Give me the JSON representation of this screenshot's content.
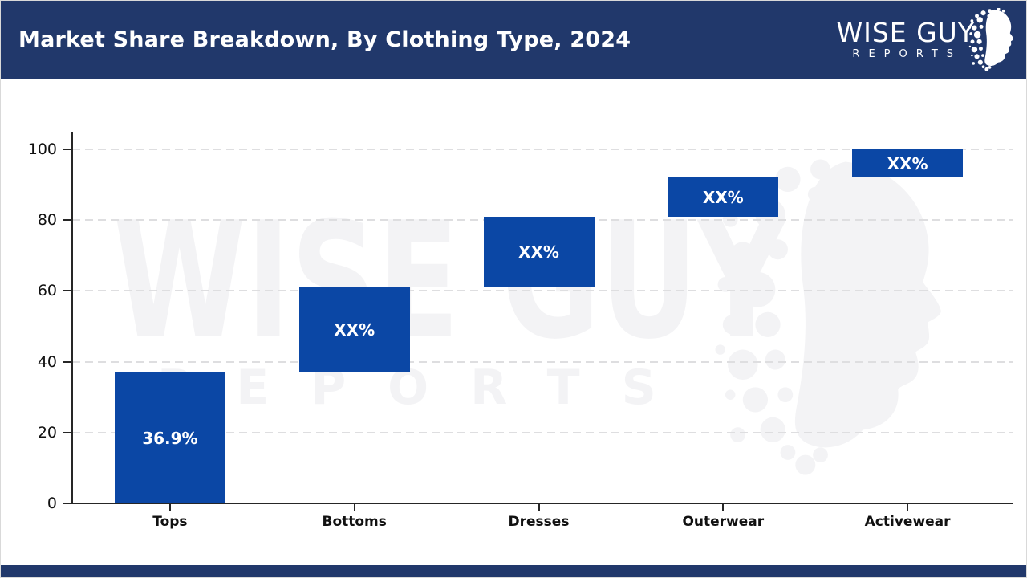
{
  "header": {
    "title": "Market Share Breakdown, By Clothing Type, 2024",
    "logo": {
      "line1": "WISE GUY",
      "line2": "REPORTS"
    }
  },
  "watermark": {
    "line1": "WISE GUY",
    "line2": "REPORTS"
  },
  "colors": {
    "header_bg": "#21386b",
    "footer_bg": "#21386b",
    "bar": "#0b47a5",
    "bar_label": "#ffffff",
    "axis": "#262626",
    "grid": "#dedee0",
    "tick_label": "#111111",
    "title": "#ffffff",
    "watermark": "#f3f3f5"
  },
  "chart_data": {
    "type": "bar",
    "variant": "waterfall",
    "title": "Market Share Breakdown, By Clothing Type, 2024",
    "categories": [
      "Tops",
      "Bottoms",
      "Dresses",
      "Outerwear",
      "Activewear"
    ],
    "segments": [
      {
        "category": "Tops",
        "start": 0,
        "end": 36.9,
        "label": "36.9%"
      },
      {
        "category": "Bottoms",
        "start": 36.9,
        "end": 61,
        "label": "XX%"
      },
      {
        "category": "Dresses",
        "start": 61,
        "end": 81,
        "label": "XX%"
      },
      {
        "category": "Outerwear",
        "start": 81,
        "end": 92,
        "label": "XX%"
      },
      {
        "category": "Activewear",
        "start": 92,
        "end": 100,
        "label": "XX%"
      }
    ],
    "yticks": [
      0,
      20,
      40,
      60,
      80,
      100
    ],
    "ylim": [
      0,
      105
    ],
    "xlabel": "",
    "ylabel": "",
    "grid": "horizontal-dashed",
    "legend": "none",
    "bar_color": "#0b47a5",
    "bar_label_color": "#ffffff"
  }
}
